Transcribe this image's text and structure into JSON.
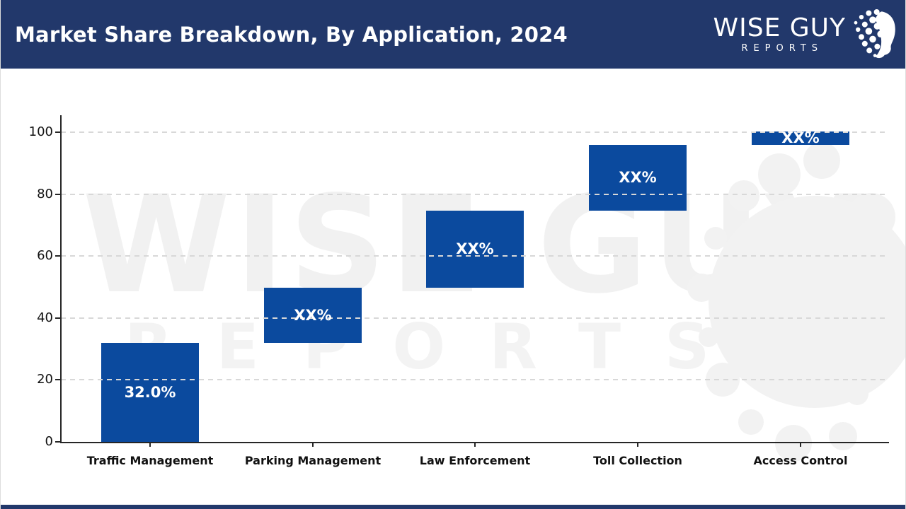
{
  "header": {
    "title": "Market Share Breakdown, By Application, 2024",
    "logo": {
      "brand_line1": "WISE GUY",
      "brand_line2": "REPORTS",
      "face_icon": "dotted-head-profile-icon"
    },
    "background_color": "#22386B"
  },
  "watermark": {
    "line1": "WISE GUY",
    "line2": "REPORTS"
  },
  "chart_data": {
    "type": "bar",
    "subtype": "waterfall",
    "title": "Market Share Breakdown, By Application, 2024",
    "categories": [
      "Traffic Management",
      "Parking Management",
      "Law Enforcement",
      "Toll Collection",
      "Access Control"
    ],
    "segments": [
      {
        "category": "Traffic Management",
        "start": 0,
        "end": 32.0,
        "value": 32.0,
        "label": "32.0%"
      },
      {
        "category": "Parking Management",
        "start": 32.0,
        "end": 49.8,
        "value": 17.8,
        "label": "XX%"
      },
      {
        "category": "Law Enforcement",
        "start": 49.8,
        "end": 74.7,
        "value": 24.9,
        "label": "XX%"
      },
      {
        "category": "Toll Collection",
        "start": 74.7,
        "end": 96.0,
        "value": 21.3,
        "label": "XX%"
      },
      {
        "category": "Access Control",
        "start": 96.0,
        "end": 100.3,
        "value": 4.3,
        "label": "XX%"
      }
    ],
    "yticks": [
      0,
      20,
      40,
      60,
      80,
      100
    ],
    "ylim": [
      0,
      105
    ],
    "xlabel": "",
    "ylabel": "",
    "grid": "dashed-horizontal-over-bars",
    "legend_position": "none",
    "bar_color": "#0B4A9E",
    "bar_label_color": "#ffffff",
    "axis_color": "#262626",
    "grid_color": "#d8d8d8"
  },
  "footer": {
    "background_color": "#22386B"
  }
}
